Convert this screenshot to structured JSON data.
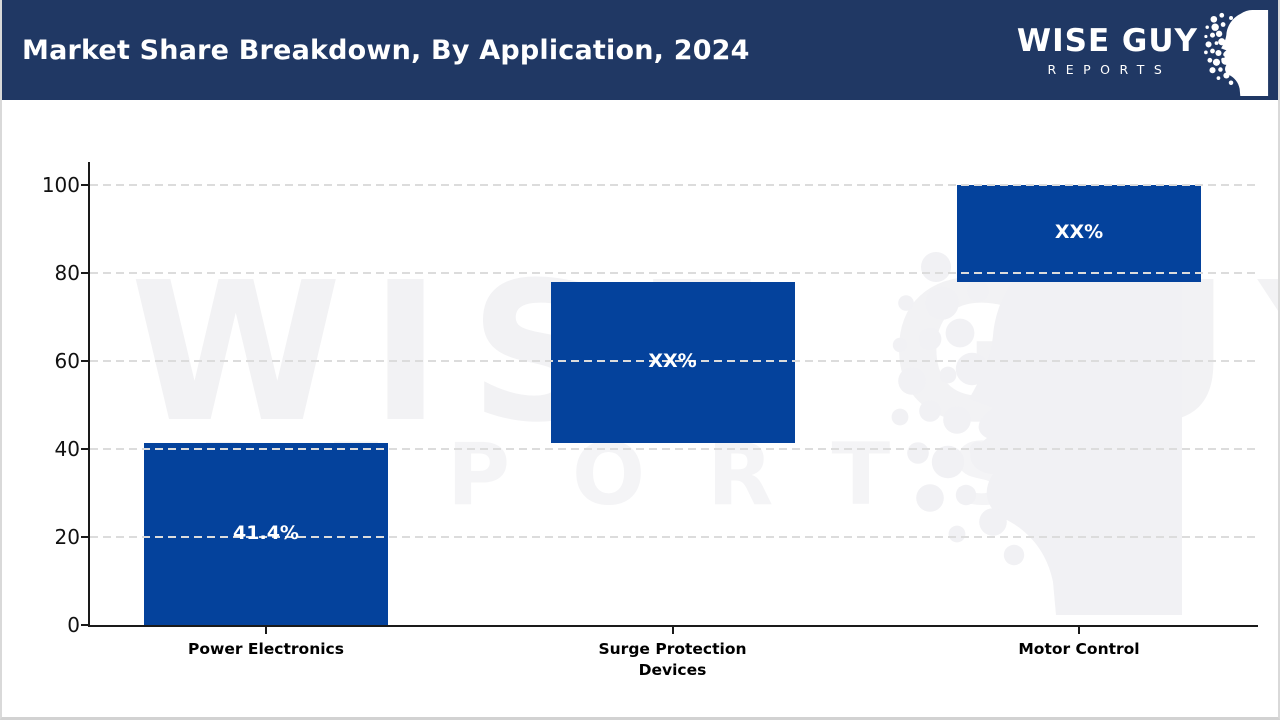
{
  "header": {
    "title": "Market Share Breakdown, By Application, 2024",
    "bg_color": "#203864",
    "logo": {
      "line1": "WISE GUY",
      "line2": "REPORTS"
    }
  },
  "watermark": {
    "line1": "WISE GUY",
    "line2": "REPORTS"
  },
  "chart_data": {
    "type": "bar",
    "variant": "waterfall",
    "title": "Market Share Breakdown, By Application, 2024",
    "categories": [
      "Power Electronics",
      "Surge Protection Devices",
      "Motor Control"
    ],
    "segments": [
      {
        "category": "Power Electronics",
        "start": 0,
        "end": 41.4,
        "label": "41.4%"
      },
      {
        "category": "Surge Protection Devices",
        "start": 41.4,
        "end": 78,
        "label": "XX%"
      },
      {
        "category": "Motor Control",
        "start": 78,
        "end": 100,
        "label": "XX%"
      }
    ],
    "yticks": [
      0,
      20,
      40,
      60,
      80,
      100
    ],
    "ylim": [
      0,
      105
    ],
    "xlabel": "",
    "ylabel": "",
    "grid": "horizontal-dashed",
    "legend": "none",
    "bar_color": "#04429C",
    "bar_label_color": "#FFFFFF",
    "axis_color": "#1a1a1a",
    "grid_color": "#dcdcdc"
  }
}
